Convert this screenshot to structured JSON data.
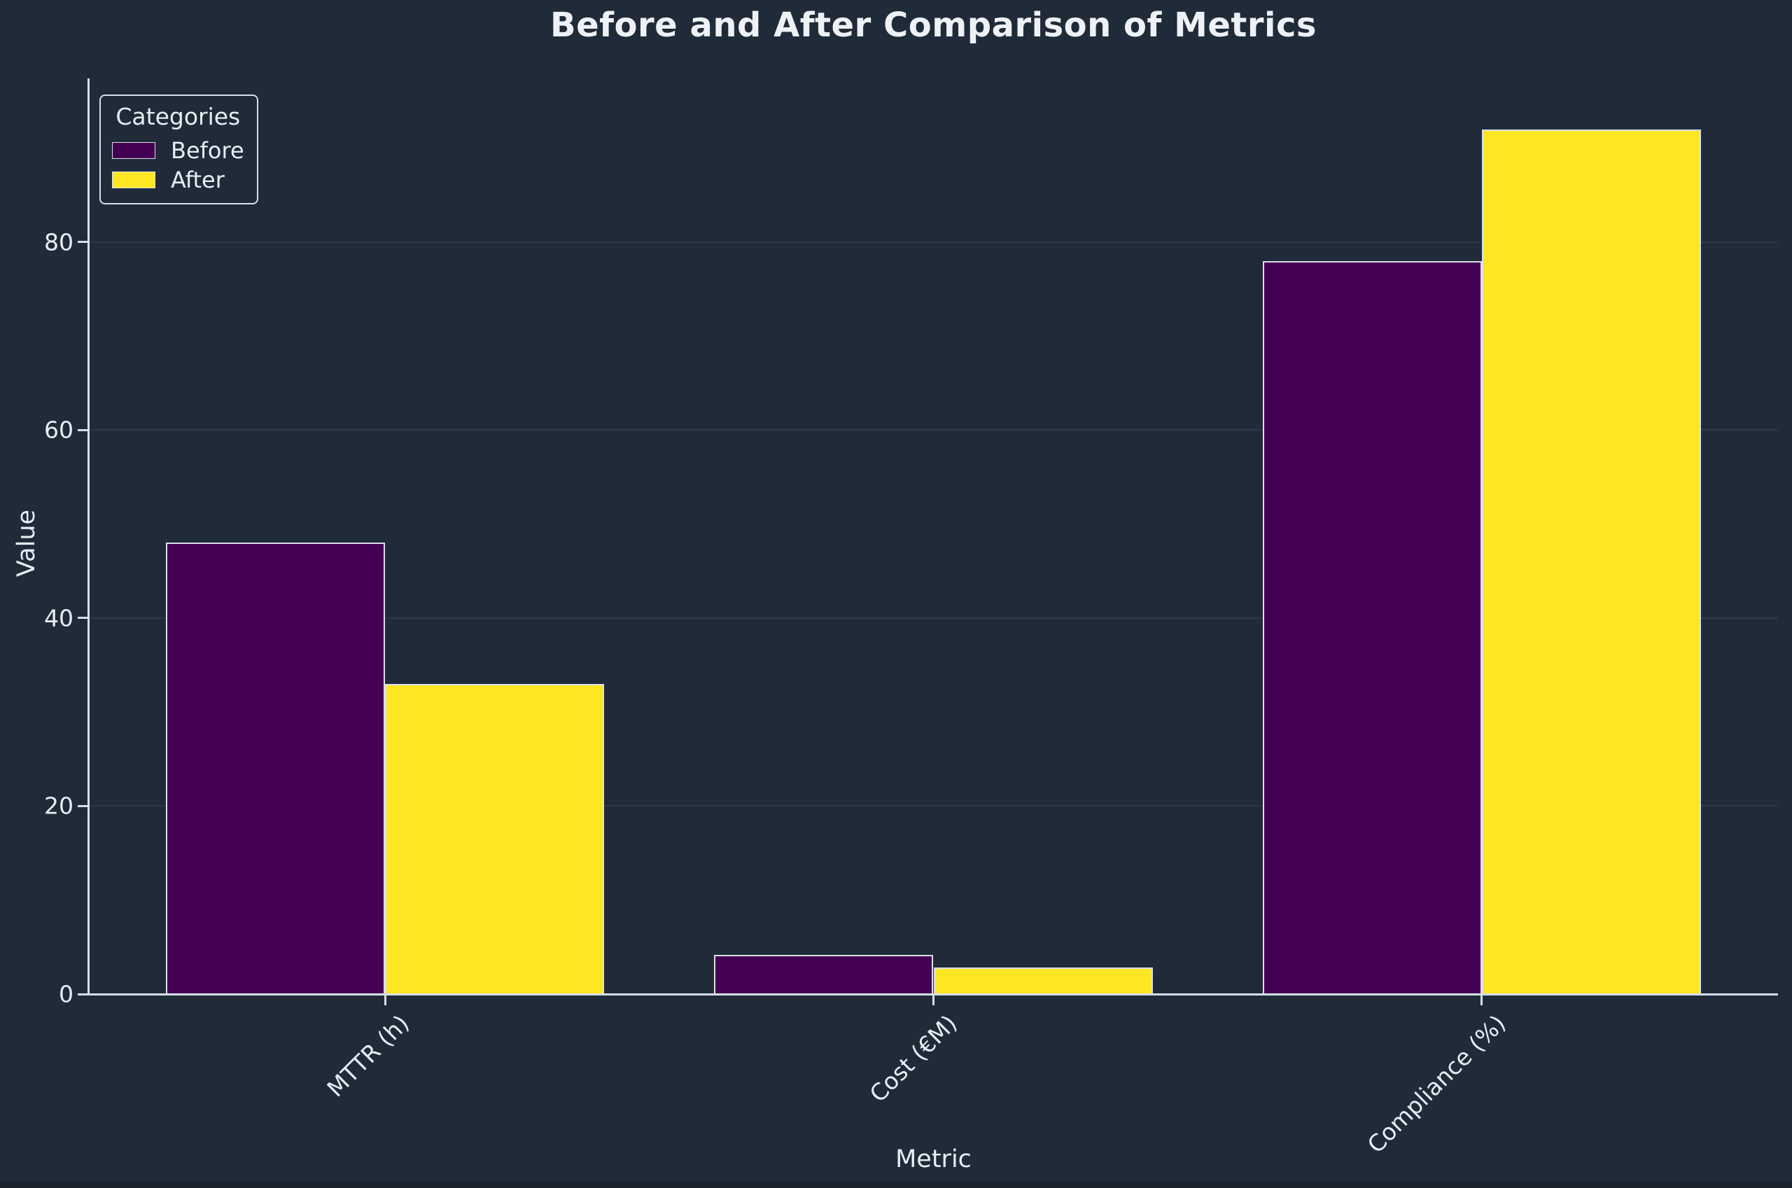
{
  "window": {
    "background": "#1f2b38",
    "bottom_edge_color": "#19222d",
    "text_color": "#e8edf3",
    "title_color": "#eef2f7"
  },
  "chart_data": {
    "type": "bar",
    "title": "Before and After Comparison of Metrics",
    "xlabel": "Metric",
    "ylabel": "Value",
    "categories": [
      "MTTR (h)",
      "Cost (€M)",
      "Compliance (%)"
    ],
    "series": [
      {
        "name": "Before",
        "color": "#440154",
        "values": [
          48,
          4.2,
          78
        ]
      },
      {
        "name": "After",
        "color": "#fde725",
        "values": [
          33,
          2.8,
          92
        ]
      }
    ],
    "yticks": [
      0,
      20,
      40,
      60,
      80
    ],
    "ylim": [
      0,
      97.4
    ],
    "xlim": [
      -0.54,
      2.54
    ],
    "bar_width": 0.4,
    "grid": true,
    "legend": {
      "title": "Categories",
      "position": "upper-left"
    },
    "colors": {
      "bar_edge": "#dcdde8",
      "axis": "#d8dfe8",
      "grid": "rgba(232, 237, 243, 0.08)"
    }
  }
}
